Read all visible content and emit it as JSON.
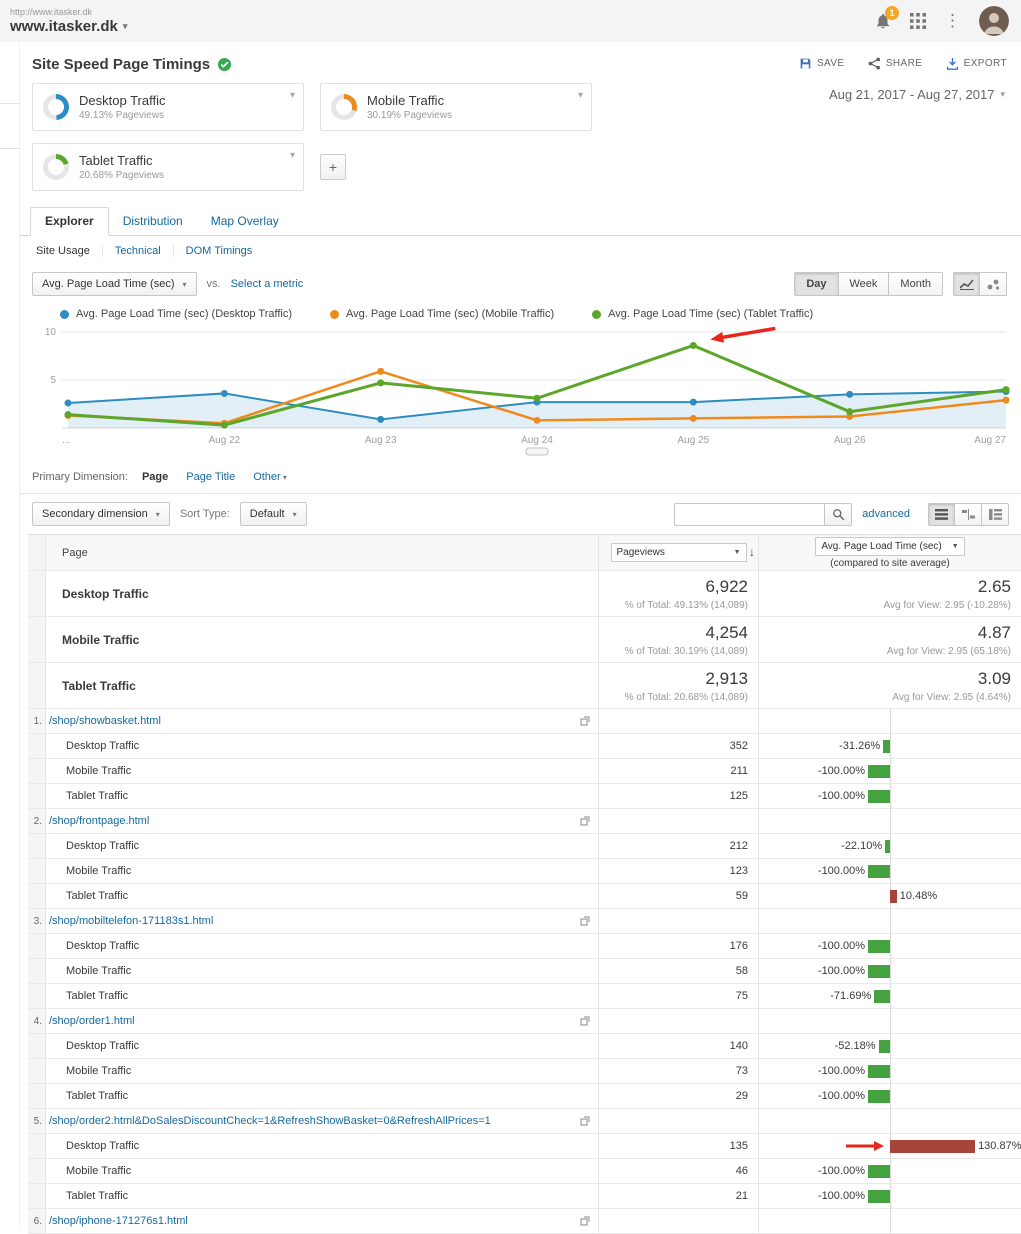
{
  "topbar": {
    "url": "http://www.itasker.dk",
    "account_name": "www.itasker.dk",
    "notification_badge": "1"
  },
  "header": {
    "title": "Site Speed Page Timings",
    "actions": {
      "save": "SAVE",
      "share": "SHARE",
      "export": "EXPORT"
    },
    "date_range": "Aug 21, 2017 - Aug 27, 2017"
  },
  "segments": {
    "cards": [
      {
        "name": "Desktop Traffic",
        "detail": "49.13% Pageviews",
        "pct": 49.13,
        "color": "#2d8cc0"
      },
      {
        "name": "Mobile Traffic",
        "detail": "30.19% Pageviews",
        "pct": 30.19,
        "color": "#ef8a1d"
      },
      {
        "name": "Tablet Traffic",
        "detail": "20.68% Pageviews",
        "pct": 20.68,
        "color": "#5ba62b"
      }
    ],
    "add_label": "+"
  },
  "tabs": {
    "items": [
      {
        "label": "Explorer",
        "active": true
      },
      {
        "label": "Distribution",
        "active": false
      },
      {
        "label": "Map Overlay",
        "active": false
      }
    ]
  },
  "subtabs": {
    "items": [
      {
        "label": "Site Usage",
        "active": true
      },
      {
        "label": "Technical",
        "active": false
      },
      {
        "label": "DOM Timings",
        "active": false
      }
    ]
  },
  "metric_bar": {
    "metric_dropdown": "Avg. Page Load Time (sec)",
    "vs_label": "vs.",
    "select_metric": "Select a metric",
    "granularity": [
      "Day",
      "Week",
      "Month"
    ],
    "granularity_active": "Day"
  },
  "legend": [
    {
      "label": "Avg. Page Load Time (sec) (Desktop Traffic)",
      "color": "#2d8cc0"
    },
    {
      "label": "Avg. Page Load Time (sec) (Mobile Traffic)",
      "color": "#ef8a1d"
    },
    {
      "label": "Avg. Page Load Time (sec) (Tablet Traffic)",
      "color": "#5ba62b"
    }
  ],
  "chart_data": {
    "type": "line",
    "x": [
      "...",
      "Aug 22",
      "Aug 23",
      "Aug 24",
      "Aug 25",
      "Aug 26",
      "Aug 27"
    ],
    "ylim": [
      0,
      10
    ],
    "yticks": [
      5,
      10
    ],
    "grid": true,
    "series": [
      {
        "name": "Avg. Page Load Time (sec) (Desktop Traffic)",
        "color": "#2d8cc0",
        "area": true,
        "values": [
          2.6,
          3.6,
          0.9,
          2.7,
          2.7,
          3.5,
          3.8
        ]
      },
      {
        "name": "Avg. Page Load Time (sec) (Mobile Traffic)",
        "color": "#ef8a1d",
        "values": [
          1.3,
          0.5,
          5.9,
          0.8,
          1.0,
          1.2,
          2.9
        ]
      },
      {
        "name": "Avg. Page Load Time (sec) (Tablet Traffic)",
        "color": "#5ba62b",
        "values": [
          1.4,
          0.3,
          4.7,
          3.1,
          8.6,
          1.7,
          4.0
        ]
      }
    ],
    "annotation": {
      "type": "arrow",
      "target_series": "Tablet Traffic",
      "target_x": "Aug 25",
      "color": "#e8261d"
    }
  },
  "dimension_bar": {
    "label": "Primary Dimension:",
    "options": [
      {
        "label": "Page",
        "active": true,
        "caret": false
      },
      {
        "label": "Page Title",
        "active": false,
        "caret": false
      },
      {
        "label": "Other",
        "active": false,
        "caret": true
      }
    ]
  },
  "table_controls": {
    "secondary_dimension": "Secondary dimension",
    "sort_type_label": "Sort Type:",
    "sort_type_value": "Default",
    "search_value": "",
    "advanced": "advanced"
  },
  "table": {
    "columns": {
      "page": "Page",
      "pageviews": "Pageviews",
      "metric": "Avg. Page Load Time (sec)",
      "metric_note": "(compared to site average)"
    },
    "bar_colors": {
      "negative": "#44a340",
      "positive": "#a8453a"
    },
    "summary_rows": [
      {
        "label": "Desktop Traffic",
        "pageviews": "6,922",
        "pageviews_note": "% of Total: 49.13% (14,089)",
        "metric": "2.65",
        "metric_note": "Avg for View: 2.95 (-10.28%)"
      },
      {
        "label": "Mobile Traffic",
        "pageviews": "4,254",
        "pageviews_note": "% of Total: 30.19% (14,089)",
        "metric": "4.87",
        "metric_note": "Avg for View: 2.95 (65.18%)"
      },
      {
        "label": "Tablet Traffic",
        "pageviews": "2,913",
        "pageviews_note": "% of Total: 20.68% (14,089)",
        "metric": "3.09",
        "metric_note": "Avg for View: 2.95 (4.64%)"
      }
    ],
    "pages": [
      {
        "index": "1.",
        "url": "/shop/showbasket.html",
        "rows": [
          {
            "segment": "Desktop Traffic",
            "pageviews": "352",
            "delta_pct": -31.26,
            "delta_label": "-31.26%"
          },
          {
            "segment": "Mobile Traffic",
            "pageviews": "211",
            "delta_pct": -100.0,
            "delta_label": "-100.00%"
          },
          {
            "segment": "Tablet Traffic",
            "pageviews": "125",
            "delta_pct": -100.0,
            "delta_label": "-100.00%"
          }
        ]
      },
      {
        "index": "2.",
        "url": "/shop/frontpage.html",
        "rows": [
          {
            "segment": "Desktop Traffic",
            "pageviews": "212",
            "delta_pct": -22.1,
            "delta_label": "-22.10%"
          },
          {
            "segment": "Mobile Traffic",
            "pageviews": "123",
            "delta_pct": -100.0,
            "delta_label": "-100.00%"
          },
          {
            "segment": "Tablet Traffic",
            "pageviews": "59",
            "delta_pct": 10.48,
            "delta_label": "10.48%"
          }
        ]
      },
      {
        "index": "3.",
        "url": "/shop/mobiltelefon-171183s1.html",
        "rows": [
          {
            "segment": "Desktop Traffic",
            "pageviews": "176",
            "delta_pct": -100.0,
            "delta_label": "-100.00%"
          },
          {
            "segment": "Mobile Traffic",
            "pageviews": "58",
            "delta_pct": -100.0,
            "delta_label": "-100.00%"
          },
          {
            "segment": "Tablet Traffic",
            "pageviews": "75",
            "delta_pct": -71.69,
            "delta_label": "-71.69%"
          }
        ]
      },
      {
        "index": "4.",
        "url": "/shop/order1.html",
        "rows": [
          {
            "segment": "Desktop Traffic",
            "pageviews": "140",
            "delta_pct": -52.18,
            "delta_label": "-52.18%"
          },
          {
            "segment": "Mobile Traffic",
            "pageviews": "73",
            "delta_pct": -100.0,
            "delta_label": "-100.00%"
          },
          {
            "segment": "Tablet Traffic",
            "pageviews": "29",
            "delta_pct": -100.0,
            "delta_label": "-100.00%"
          }
        ]
      },
      {
        "index": "5.",
        "url": "/shop/order2.html&DoSalesDiscountCheck=1&RefreshShowBasket=0&RefreshAllPrices=1",
        "rows": [
          {
            "segment": "Desktop Traffic",
            "pageviews": "135",
            "delta_pct": 130.87,
            "delta_label": "130.87%",
            "arrow": true
          },
          {
            "segment": "Mobile Traffic",
            "pageviews": "46",
            "delta_pct": -100.0,
            "delta_label": "-100.00%"
          },
          {
            "segment": "Tablet Traffic",
            "pageviews": "21",
            "delta_pct": -100.0,
            "delta_label": "-100.00%"
          }
        ]
      },
      {
        "index": "6.",
        "url": "/shop/iphone-171276s1.html",
        "rows": []
      }
    ]
  }
}
